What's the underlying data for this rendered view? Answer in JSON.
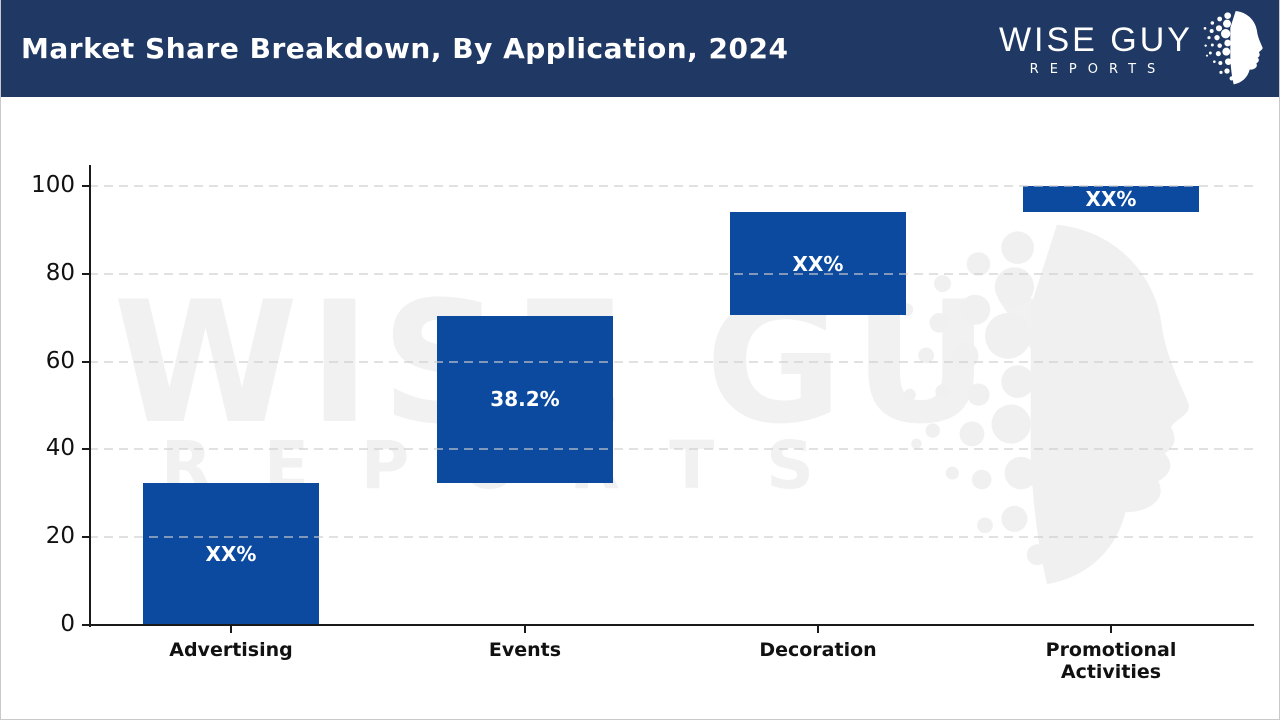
{
  "header": {
    "title": "Market Share Breakdown, By Application, 2024",
    "logo": {
      "line1": "WISE GUY",
      "line2": "REPORTS"
    }
  },
  "watermark": {
    "line1": "WISE GUY",
    "line2": "REPORTS"
  },
  "colors": {
    "header_bg": "#1f3864",
    "bar": "#0c4aa0",
    "bar_label": "#ffffff",
    "grid": "#dcdcdc",
    "axis": "#1a1a1a",
    "watermark": "#f1f1f1"
  },
  "chart_data": {
    "type": "bar",
    "subtype": "waterfall",
    "title": "Market Share Breakdown, By Application, 2024",
    "xlabel": "",
    "ylabel": "",
    "categories": [
      "Advertising",
      "Events",
      "Decoration",
      "Promotional Activities"
    ],
    "segments": [
      {
        "category": "Advertising",
        "start": 0,
        "end": 32.3,
        "label": "XX%"
      },
      {
        "category": "Events",
        "start": 32.3,
        "end": 70.5,
        "label": "38.2%"
      },
      {
        "category": "Decoration",
        "start": 70.5,
        "end": 94.0,
        "label": "XX%"
      },
      {
        "category": "Promotional Activities",
        "start": 94.0,
        "end": 100,
        "label": "XX%"
      }
    ],
    "yticks": [
      0,
      20,
      40,
      60,
      80,
      100
    ],
    "ylim": [
      0,
      105
    ],
    "grid": "horizontal-dashed",
    "legend": "none"
  }
}
